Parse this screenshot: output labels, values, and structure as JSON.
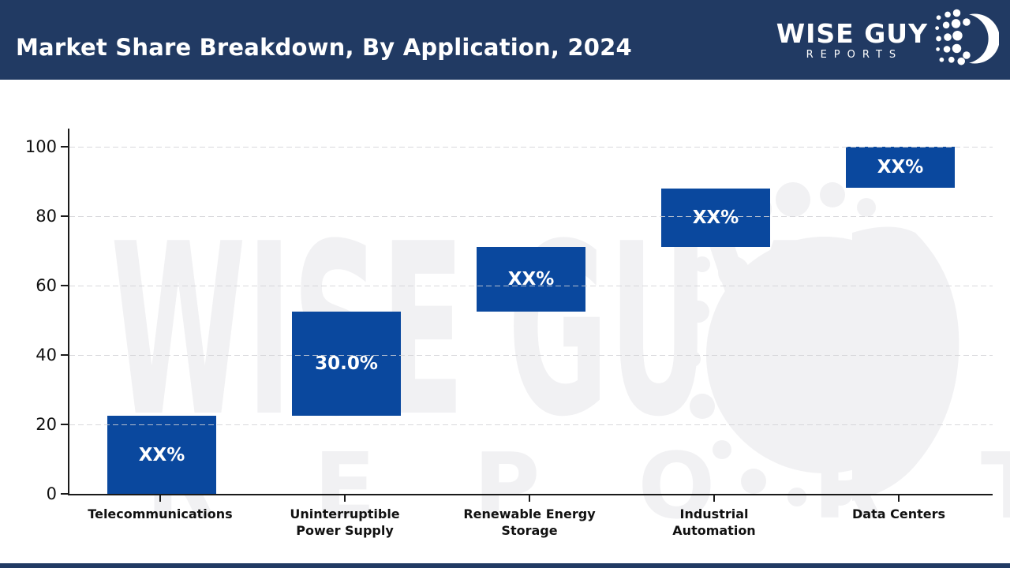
{
  "header": {
    "title": "Market Share Breakdown, By Application, 2024",
    "bg_color": "#213a63",
    "logo": {
      "line1": "WISE GUY",
      "line2": "REPORTS",
      "head_icon": "wiseguy-head-icon"
    }
  },
  "footer": {
    "bg_color": "#213a63"
  },
  "watermark": {
    "line1": "WISE GUY",
    "line2": "R E P O R T S",
    "head_icon": "watermark-head-icon",
    "color": "#f1f1f3"
  },
  "chart_data": {
    "type": "bar",
    "subtype": "waterfall",
    "title": "Market Share Breakdown, By Application, 2024",
    "xlabel": "",
    "ylabel": "",
    "grid": true,
    "gridline_style": "dashed",
    "bar_color": "#0a489e",
    "label_color": "#ffffff",
    "ylim": [
      0,
      105.3
    ],
    "yticks": [
      0,
      20,
      40,
      60,
      80,
      100
    ],
    "categories": [
      "Telecommunications",
      "Uninterruptible\nPower Supply",
      "Renewable Energy\nStorage",
      "Industrial\nAutomation",
      "Data Centers"
    ],
    "bars": [
      {
        "category": "Telecommunications",
        "from": 0,
        "to": 22.5,
        "label": "XX%"
      },
      {
        "category": "Uninterruptible Power Supply",
        "from": 22.5,
        "to": 52.5,
        "label": "30.0%"
      },
      {
        "category": "Renewable Energy Storage",
        "from": 52.5,
        "to": 71.1,
        "label": "XX%"
      },
      {
        "category": "Industrial Automation",
        "from": 71.2,
        "to": 88.1,
        "label": "XX%"
      },
      {
        "category": "Data Centers",
        "from": 88.3,
        "to": 100.0,
        "label": "XX%"
      }
    ]
  }
}
